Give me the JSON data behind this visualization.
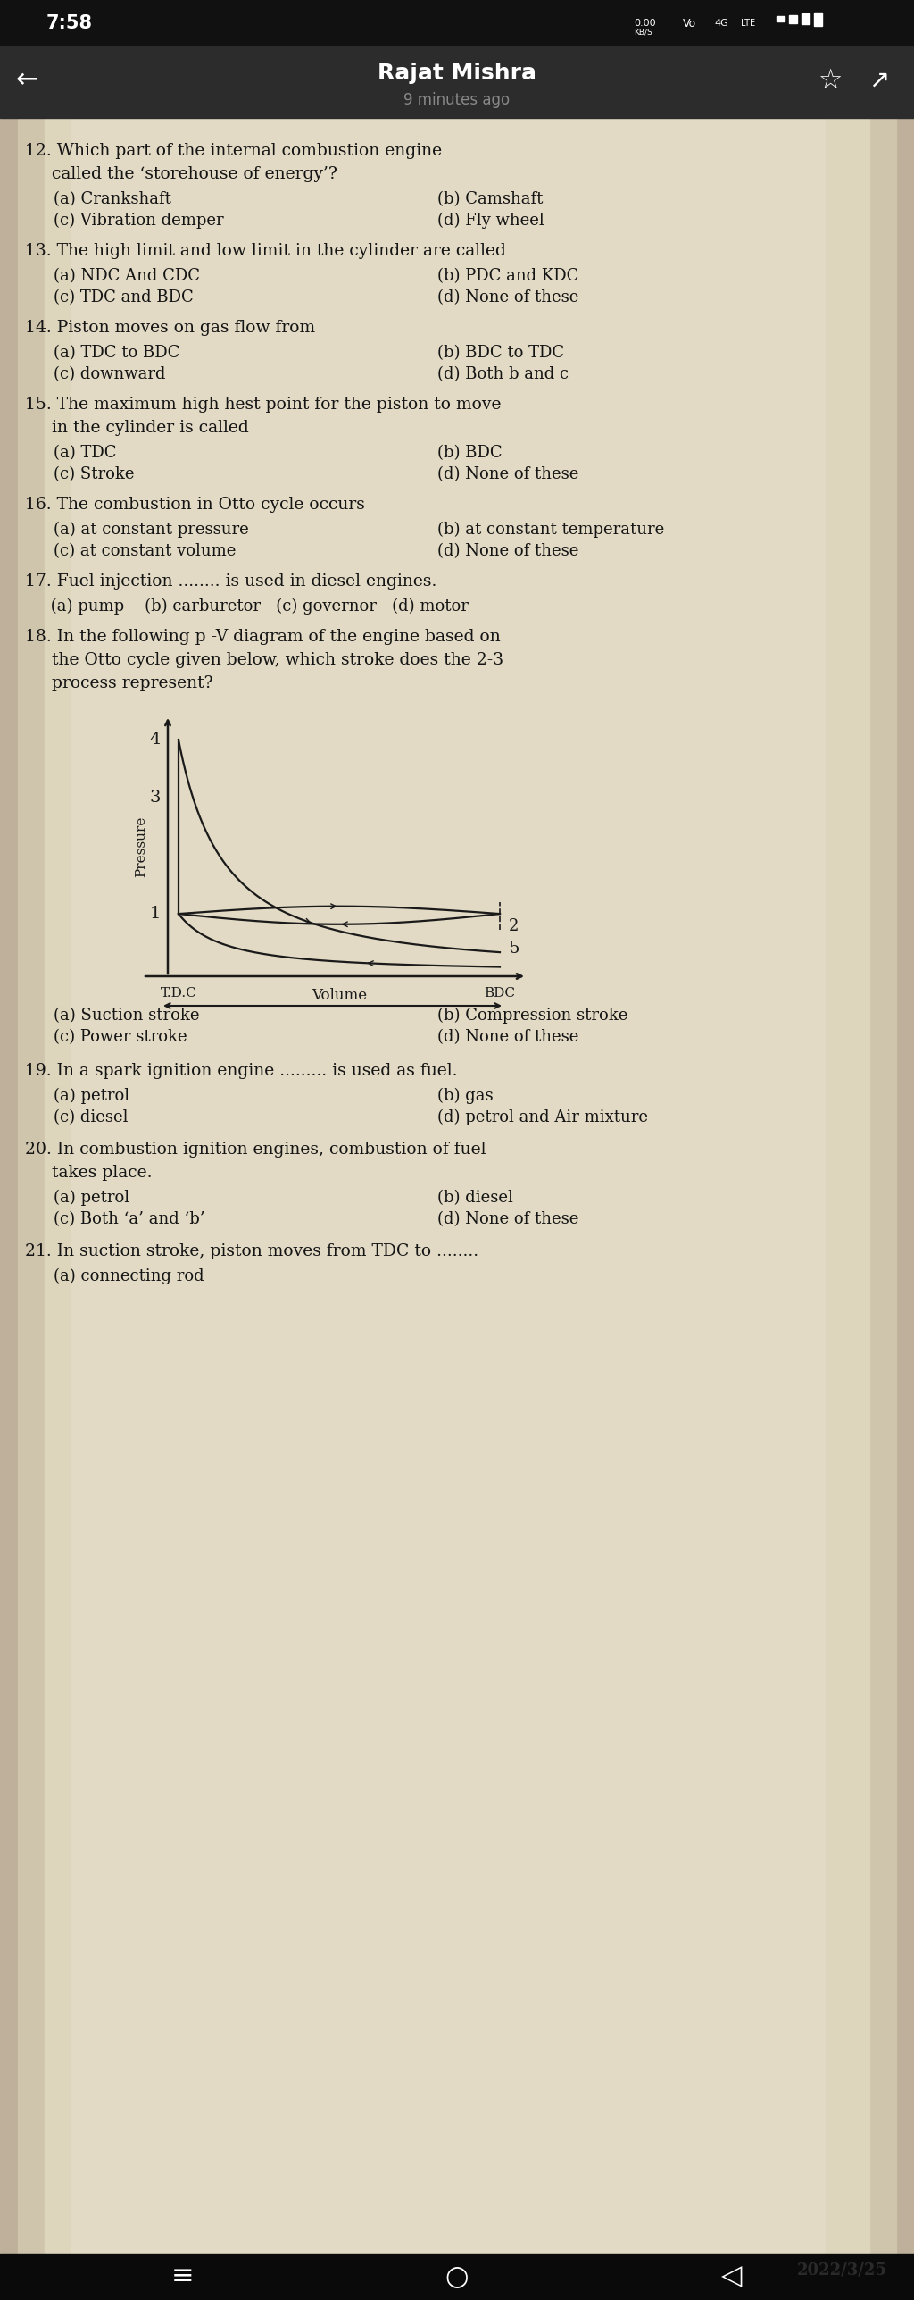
{
  "status_time": "7:58",
  "header_name": "Rajat Mishra",
  "header_sub": "9 minutes ago",
  "bg_status": "#111111",
  "bg_header": "#2c2c2c",
  "bg_page_top": "#c0b498",
  "bg_page": "#d8ceb4",
  "bg_page_center": "#e0d8c4",
  "text_dark": "#141414",
  "text_white": "#ffffff",
  "text_gray": "#888888",
  "nav_bg": "#0a0a0a",
  "q12_line1": "12. Which part of the internal combustion engine",
  "q12_line2": "     called the ‘storehouse of energy’?",
  "q12_a": "(a) Crankshaft",
  "q12_b": "(b) Camshaft",
  "q12_c": "(c) Vibration demper",
  "q12_d": "(d) Fly wheel",
  "q13_line1": "13. The high limit and low limit in the cylinder are called",
  "q13_a": "(a) NDC And CDC",
  "q13_b": "(b) PDC and KDC",
  "q13_c": "(c) TDC and BDC",
  "q13_d": "(d) None of these",
  "q14_line1": "14. Piston moves on gas flow from",
  "q14_a": "(a) TDC to BDC",
  "q14_b": "(b) BDC to TDC",
  "q14_c": "(c) downward",
  "q14_d": "(d) Both b and c",
  "q15_line1": "15. The maximum high hest point for the piston to move",
  "q15_line2": "     in the cylinder is called",
  "q15_a": "(a) TDC",
  "q15_b": "(b) BDC",
  "q15_c": "(c) Stroke",
  "q15_d": "(d) None of these",
  "q16_line1": "16. The combustion in Otto cycle occurs",
  "q16_a": "(a) at constant pressure",
  "q16_b": "(b) at constant temperature",
  "q16_c": "(c) at constant volume",
  "q16_d": "(d) None of these",
  "q17_line1": "17. Fuel injection ........ is used in diesel engines.",
  "q17_opts": "     (a) pump    (b) carburetor   (c) governor   (d) motor",
  "q18_line1": "18. In the following p -V diagram of the engine based on",
  "q18_line2": "     the Otto cycle given below, which stroke does the 2-3",
  "q18_line3": "     process represent?",
  "q18_a": "(a) Suction stroke",
  "q18_b": "(b) Compression stroke",
  "q18_c": "(c) Power stroke",
  "q18_d": "(d) None of these",
  "q19_line1": "19. In a spark ignition engine ......... is used as fuel.",
  "q19_a": "(a) petrol",
  "q19_b": "(b) gas",
  "q19_c": "(c) diesel",
  "q19_d": "(d) petrol and Air mixture",
  "q20_line1": "20. In combustion ignition engines, combustion of fuel",
  "q20_line2": "     takes place.",
  "q20_a": "(a) petrol",
  "q20_b": "(b) diesel",
  "q20_c": "(c) Both ‘a’ and ‘b’",
  "q20_d": "(d) None of these",
  "q21_line1": "21. In suction stroke, piston moves from TDC to ........",
  "q21_a": "(a) connecting rod",
  "footer_date": "2022/3/25",
  "diagram_col": "#1a1a1a",
  "diagram_lw": 1.6,
  "pressure_label": "Pressure",
  "volume_label": "Volume",
  "tdc_label": "T.D.C",
  "bdc_label": "BDC"
}
